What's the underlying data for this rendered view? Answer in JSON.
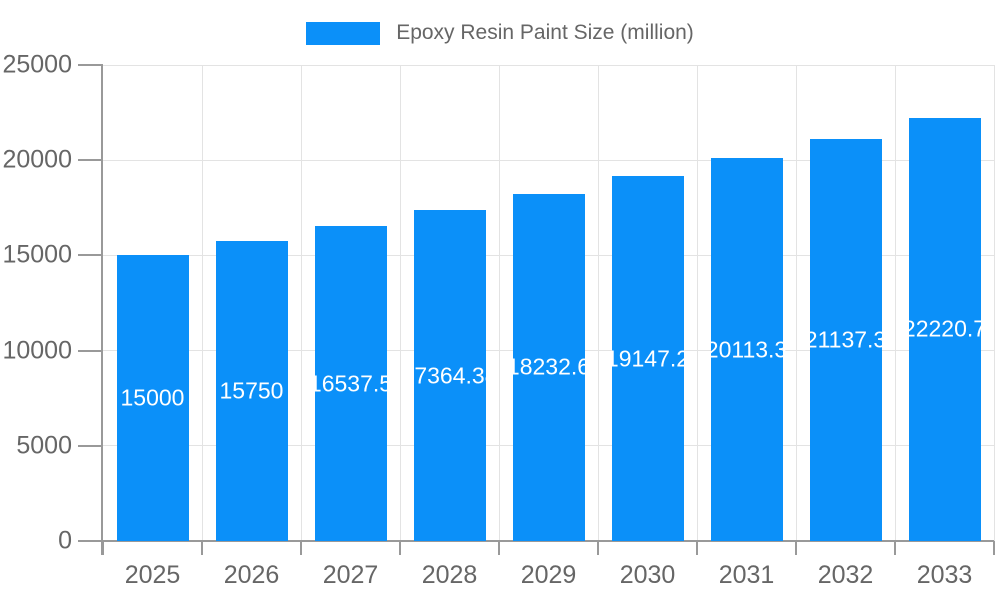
{
  "chart_data": {
    "type": "bar",
    "title": "Epoxy Resin Paint Size (million)",
    "legend": {
      "label": "Epoxy Resin Paint Size (million)",
      "position": "top-center"
    },
    "categories": [
      "2025",
      "2026",
      "2027",
      "2028",
      "2029",
      "2030",
      "2031",
      "2032",
      "2033"
    ],
    "values": [
      15000,
      15750,
      16537.5,
      17364.38,
      18232.6,
      19147.2,
      20113.3,
      21137.3,
      22220.7
    ],
    "value_labels": [
      "15000",
      "15750",
      "16537.5",
      "17364.38",
      "18232.6",
      "19147.2",
      "20113.3",
      "21137.3",
      "22220.7"
    ],
    "xlabel": "",
    "ylabel": "",
    "ylim": [
      0,
      25000
    ],
    "y_ticks": [
      0,
      5000,
      10000,
      15000,
      20000,
      25000
    ],
    "y_tick_labels": [
      "0",
      "5000",
      "10000",
      "15000",
      "20000",
      "25000"
    ],
    "grid": true,
    "colors": {
      "bar": "#0b90f9",
      "value_label": "#ffffff",
      "axis": "#999999",
      "grid": "#e3e3e3",
      "tick_label": "#666666",
      "legend_text": "#666666"
    }
  }
}
